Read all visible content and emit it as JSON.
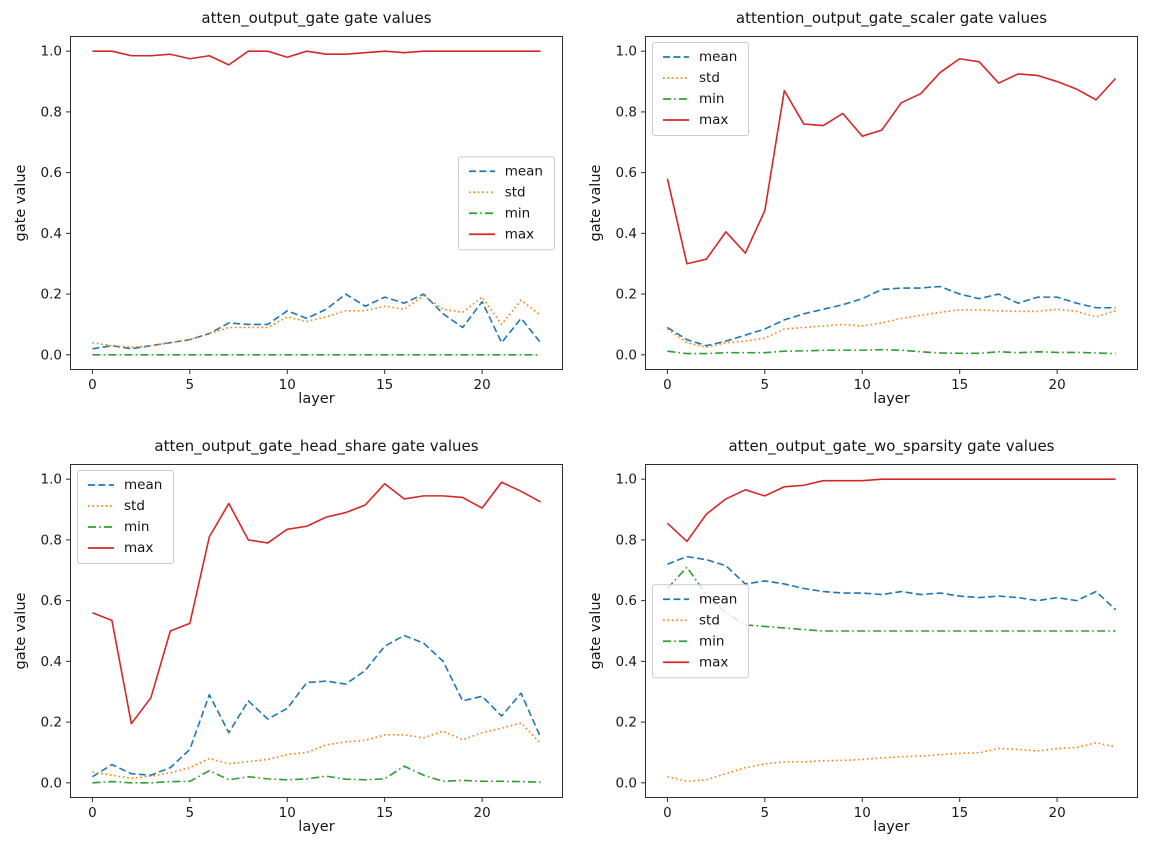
{
  "figure": {
    "background": "#ffffff"
  },
  "chart_data": [
    {
      "type": "line",
      "title": "atten_output_gate gate values",
      "xlabel": "layer",
      "ylabel": "gate value",
      "xlim": [
        -1.15,
        24.15
      ],
      "ylim": [
        -0.05,
        1.05
      ],
      "grid": false,
      "legend_loc": "center-right",
      "xticks": {
        "values": [
          0,
          5,
          10,
          15,
          20
        ],
        "labels": [
          "0",
          "5",
          "10",
          "15",
          "20"
        ]
      },
      "yticks": {
        "values": [
          0.0,
          0.2,
          0.4,
          0.6,
          0.8,
          1.0
        ],
        "labels": [
          "0.0",
          "0.2",
          "0.4",
          "0.6",
          "0.8",
          "1.0"
        ]
      },
      "x": [
        0,
        1,
        2,
        3,
        4,
        5,
        6,
        7,
        8,
        9,
        10,
        11,
        12,
        13,
        14,
        15,
        16,
        17,
        18,
        19,
        20,
        21,
        22,
        23
      ],
      "series": [
        {
          "name": "mean",
          "color": "#1f77b4",
          "dash": "dashed",
          "values": [
            0.02,
            0.03,
            0.02,
            0.03,
            0.04,
            0.05,
            0.07,
            0.105,
            0.1,
            0.1,
            0.145,
            0.12,
            0.15,
            0.2,
            0.16,
            0.19,
            0.17,
            0.2,
            0.135,
            0.09,
            0.175,
            0.04,
            0.12,
            0.04
          ]
        },
        {
          "name": "std",
          "color": "#ff7f0e",
          "dash": "dotted",
          "values": [
            0.04,
            0.03,
            0.025,
            0.03,
            0.04,
            0.05,
            0.07,
            0.09,
            0.09,
            0.09,
            0.125,
            0.11,
            0.125,
            0.145,
            0.145,
            0.16,
            0.15,
            0.195,
            0.15,
            0.14,
            0.19,
            0.1,
            0.18,
            0.13
          ]
        },
        {
          "name": "min",
          "color": "#2ca02c",
          "dash": "dashdot",
          "values": [
            0.0,
            0.0,
            0.0,
            0.0,
            0.0,
            0.0,
            0.0,
            0.0,
            0.0,
            0.0,
            0.0,
            0.0,
            0.0,
            0.0,
            0.0,
            0.0,
            0.0,
            0.0,
            0.0,
            0.0,
            0.0,
            0.0,
            0.0,
            0.0
          ]
        },
        {
          "name": "max",
          "color": "#d62728",
          "dash": "solid",
          "values": [
            1.0,
            1.0,
            0.985,
            0.985,
            0.99,
            0.975,
            0.985,
            0.955,
            1.0,
            1.0,
            0.98,
            1.0,
            0.99,
            0.99,
            0.995,
            1.0,
            0.995,
            1.0,
            1.0,
            1.0,
            1.0,
            1.0,
            1.0,
            1.0
          ]
        }
      ]
    },
    {
      "type": "line",
      "title": "attention_output_gate_scaler gate values",
      "xlabel": "layer",
      "ylabel": "gate value",
      "xlim": [
        -1.15,
        24.15
      ],
      "ylim": [
        -0.05,
        1.05
      ],
      "grid": false,
      "legend_loc": "upper-left",
      "xticks": {
        "values": [
          0,
          5,
          10,
          15,
          20
        ],
        "labels": [
          "0",
          "5",
          "10",
          "15",
          "20"
        ]
      },
      "yticks": {
        "values": [
          0.0,
          0.2,
          0.4,
          0.6,
          0.8,
          1.0
        ],
        "labels": [
          "0.0",
          "0.2",
          "0.4",
          "0.6",
          "0.8",
          "1.0"
        ]
      },
      "x": [
        0,
        1,
        2,
        3,
        4,
        5,
        6,
        7,
        8,
        9,
        10,
        11,
        12,
        13,
        14,
        15,
        16,
        17,
        18,
        19,
        20,
        21,
        22,
        23
      ],
      "series": [
        {
          "name": "mean",
          "color": "#1f77b4",
          "dash": "dashed",
          "values": [
            0.09,
            0.05,
            0.03,
            0.045,
            0.065,
            0.085,
            0.115,
            0.135,
            0.15,
            0.165,
            0.185,
            0.215,
            0.22,
            0.22,
            0.225,
            0.2,
            0.185,
            0.2,
            0.17,
            0.19,
            0.19,
            0.17,
            0.155,
            0.155
          ]
        },
        {
          "name": "std",
          "color": "#ff7f0e",
          "dash": "dotted",
          "values": [
            0.085,
            0.04,
            0.025,
            0.04,
            0.045,
            0.055,
            0.085,
            0.09,
            0.095,
            0.1,
            0.095,
            0.105,
            0.12,
            0.13,
            0.14,
            0.148,
            0.148,
            0.145,
            0.143,
            0.143,
            0.15,
            0.143,
            0.125,
            0.145
          ]
        },
        {
          "name": "min",
          "color": "#2ca02c",
          "dash": "dashdot",
          "values": [
            0.012,
            0.004,
            0.004,
            0.007,
            0.007,
            0.007,
            0.012,
            0.013,
            0.015,
            0.015,
            0.015,
            0.017,
            0.015,
            0.01,
            0.006,
            0.005,
            0.005,
            0.01,
            0.007,
            0.01,
            0.008,
            0.008,
            0.006,
            0.004
          ]
        },
        {
          "name": "max",
          "color": "#d62728",
          "dash": "solid",
          "values": [
            0.58,
            0.3,
            0.315,
            0.405,
            0.335,
            0.475,
            0.87,
            0.76,
            0.755,
            0.795,
            0.72,
            0.74,
            0.83,
            0.86,
            0.93,
            0.975,
            0.965,
            0.895,
            0.925,
            0.92,
            0.9,
            0.875,
            0.84,
            0.91
          ]
        }
      ]
    },
    {
      "type": "line",
      "title": "atten_output_gate_head_share gate values",
      "xlabel": "layer",
      "ylabel": "gate value",
      "xlim": [
        -1.15,
        24.15
      ],
      "ylim": [
        -0.05,
        1.05
      ],
      "grid": false,
      "legend_loc": "upper-left",
      "xticks": {
        "values": [
          0,
          5,
          10,
          15,
          20
        ],
        "labels": [
          "0",
          "5",
          "10",
          "15",
          "20"
        ]
      },
      "yticks": {
        "values": [
          0.0,
          0.2,
          0.4,
          0.6,
          0.8,
          1.0
        ],
        "labels": [
          "0.0",
          "0.2",
          "0.4",
          "0.6",
          "0.8",
          "1.0"
        ]
      },
      "x": [
        0,
        1,
        2,
        3,
        4,
        5,
        6,
        7,
        8,
        9,
        10,
        11,
        12,
        13,
        14,
        15,
        16,
        17,
        18,
        19,
        20,
        21,
        22,
        23
      ],
      "series": [
        {
          "name": "mean",
          "color": "#1f77b4",
          "dash": "dashed",
          "values": [
            0.02,
            0.06,
            0.03,
            0.025,
            0.05,
            0.11,
            0.29,
            0.165,
            0.27,
            0.21,
            0.245,
            0.33,
            0.335,
            0.325,
            0.37,
            0.45,
            0.485,
            0.46,
            0.4,
            0.27,
            0.285,
            0.22,
            0.295,
            0.15
          ]
        },
        {
          "name": "std",
          "color": "#ff7f0e",
          "dash": "dotted",
          "values": [
            0.035,
            0.025,
            0.015,
            0.022,
            0.033,
            0.05,
            0.08,
            0.063,
            0.07,
            0.077,
            0.093,
            0.1,
            0.125,
            0.135,
            0.14,
            0.158,
            0.158,
            0.148,
            0.17,
            0.142,
            0.165,
            0.18,
            0.197,
            0.13
          ]
        },
        {
          "name": "min",
          "color": "#2ca02c",
          "dash": "dashdot",
          "values": [
            0.0,
            0.004,
            0.0,
            0.0,
            0.004,
            0.005,
            0.04,
            0.01,
            0.02,
            0.013,
            0.01,
            0.013,
            0.022,
            0.012,
            0.01,
            0.013,
            0.055,
            0.025,
            0.005,
            0.008,
            0.005,
            0.005,
            0.004,
            0.002
          ]
        },
        {
          "name": "max",
          "color": "#d62728",
          "dash": "solid",
          "values": [
            0.56,
            0.535,
            0.195,
            0.28,
            0.5,
            0.525,
            0.81,
            0.92,
            0.8,
            0.79,
            0.835,
            0.845,
            0.875,
            0.89,
            0.915,
            0.985,
            0.935,
            0.945,
            0.945,
            0.94,
            0.905,
            0.99,
            0.96,
            0.925
          ]
        }
      ]
    },
    {
      "type": "line",
      "title": "atten_output_gate_wo_sparsity gate values",
      "xlabel": "layer",
      "ylabel": "gate value",
      "xlim": [
        -1.15,
        24.15
      ],
      "ylim": [
        -0.05,
        1.05
      ],
      "grid": false,
      "legend_loc": "center-left",
      "xticks": {
        "values": [
          0,
          5,
          10,
          15,
          20
        ],
        "labels": [
          "0",
          "5",
          "10",
          "15",
          "20"
        ]
      },
      "yticks": {
        "values": [
          0.0,
          0.2,
          0.4,
          0.6,
          0.8,
          1.0
        ],
        "labels": [
          "0.0",
          "0.2",
          "0.4",
          "0.6",
          "0.8",
          "1.0"
        ]
      },
      "x": [
        0,
        1,
        2,
        3,
        4,
        5,
        6,
        7,
        8,
        9,
        10,
        11,
        12,
        13,
        14,
        15,
        16,
        17,
        18,
        19,
        20,
        21,
        22,
        23
      ],
      "series": [
        {
          "name": "mean",
          "color": "#1f77b4",
          "dash": "dashed",
          "values": [
            0.72,
            0.745,
            0.735,
            0.715,
            0.655,
            0.665,
            0.655,
            0.64,
            0.63,
            0.625,
            0.625,
            0.62,
            0.63,
            0.62,
            0.625,
            0.615,
            0.61,
            0.615,
            0.61,
            0.6,
            0.61,
            0.6,
            0.63,
            0.57
          ]
        },
        {
          "name": "std",
          "color": "#ff7f0e",
          "dash": "dotted",
          "values": [
            0.02,
            0.005,
            0.01,
            0.03,
            0.05,
            0.062,
            0.069,
            0.069,
            0.073,
            0.074,
            0.077,
            0.082,
            0.086,
            0.088,
            0.093,
            0.097,
            0.099,
            0.113,
            0.11,
            0.105,
            0.113,
            0.116,
            0.132,
            0.118
          ]
        },
        {
          "name": "min",
          "color": "#2ca02c",
          "dash": "dashdot",
          "values": [
            0.64,
            0.71,
            0.62,
            0.56,
            0.52,
            0.515,
            0.51,
            0.505,
            0.5,
            0.5,
            0.5,
            0.5,
            0.5,
            0.5,
            0.5,
            0.5,
            0.5,
            0.5,
            0.5,
            0.5,
            0.5,
            0.5,
            0.5,
            0.5
          ]
        },
        {
          "name": "max",
          "color": "#d62728",
          "dash": "solid",
          "values": [
            0.855,
            0.795,
            0.885,
            0.935,
            0.965,
            0.945,
            0.975,
            0.98,
            0.995,
            0.995,
            0.995,
            1.0,
            1.0,
            1.0,
            1.0,
            1.0,
            1.0,
            1.0,
            1.0,
            1.0,
            1.0,
            1.0,
            1.0,
            1.0
          ]
        }
      ]
    }
  ]
}
